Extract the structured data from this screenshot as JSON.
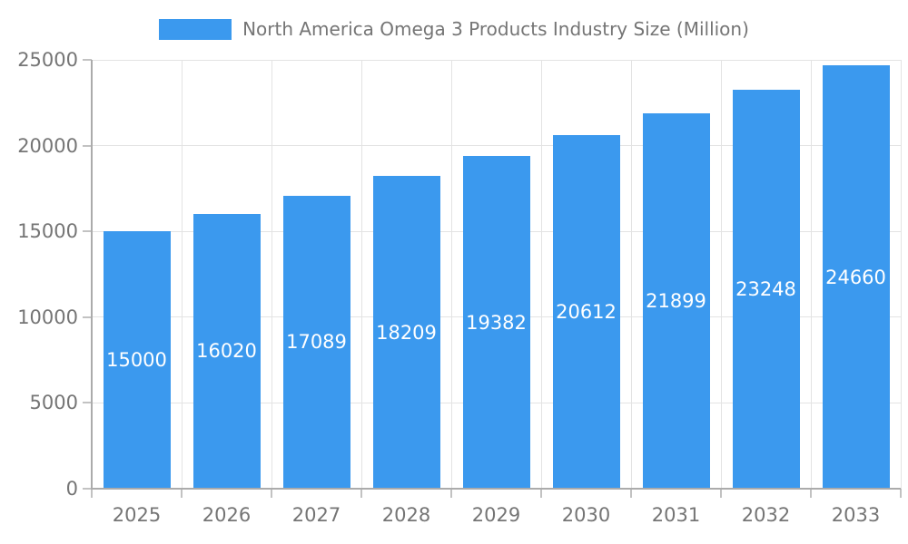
{
  "chart_data": {
    "type": "bar",
    "title": "North America Omega 3 Products Industry Size (Million)",
    "categories": [
      "2025",
      "2026",
      "2027",
      "2028",
      "2029",
      "2030",
      "2031",
      "2032",
      "2033"
    ],
    "values": [
      15000,
      16020,
      17089,
      18209,
      19382,
      20612,
      21899,
      23248,
      24660
    ],
    "xlabel": "",
    "ylabel": "",
    "ylim": [
      0,
      25000
    ],
    "yticks": [
      0,
      5000,
      10000,
      15000,
      20000,
      25000
    ],
    "grid": true,
    "legend_position": "top",
    "bar_color": "#3B99EE",
    "value_label_color": "#FFFFFF",
    "axis_text_color": "#757575",
    "grid_color": "#E3E3E3",
    "axis_line_color": "#ABABAB",
    "tick_color": "#C2C2C2"
  }
}
